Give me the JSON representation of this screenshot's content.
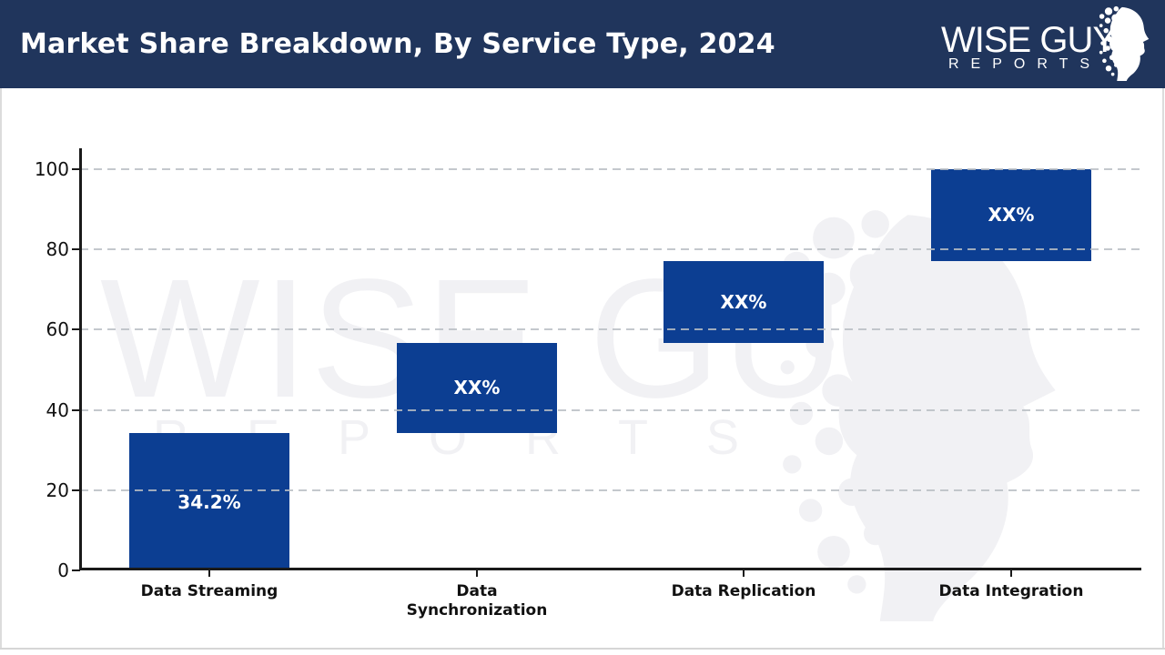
{
  "header": {
    "title": "Market Share Breakdown, By Service Type, 2024",
    "logo": {
      "name": "WISE GUY",
      "sub": "REPORTS"
    }
  },
  "watermark": {
    "name": "WISE GUY",
    "sub": "REPORTS"
  },
  "chart_data": {
    "type": "bar",
    "subtype": "waterfall",
    "title": "Market Share Breakdown, By Service Type, 2024",
    "categories": [
      "Data Streaming",
      "Data Synchronization",
      "Data Replication",
      "Data Integration"
    ],
    "category_lines": [
      [
        "Data Streaming"
      ],
      [
        "Data",
        "Synchronization"
      ],
      [
        "Data Replication"
      ],
      [
        "Data Integration"
      ]
    ],
    "series": [
      {
        "name": "Market share (%)",
        "segments": [
          {
            "category": "Data Streaming",
            "start": 0,
            "end": 34.2,
            "label": "34.2%"
          },
          {
            "category": "Data Synchronization",
            "start": 34.2,
            "end": 56.8,
            "label": "XX%"
          },
          {
            "category": "Data Replication",
            "start": 56.8,
            "end": 77.1,
            "label": "XX%"
          },
          {
            "category": "Data Integration",
            "start": 77.1,
            "end": 100,
            "label": "XX%"
          }
        ]
      }
    ],
    "xlabel": "",
    "ylabel": "",
    "ylim": [
      0,
      100
    ],
    "yticks": [
      0,
      20,
      40,
      60,
      80,
      100
    ],
    "grid": "horizontal-dashed",
    "legend": "none",
    "colors": {
      "bar": "#0C3E92",
      "bar_label": "#FFFFFF",
      "axis": "#1A1A1A",
      "tick_label": "#111111",
      "gridline": "#CBCBCB",
      "header_bg": "#20355C",
      "header_text": "#FFFFFF",
      "watermark": "#F1F1F4"
    }
  }
}
